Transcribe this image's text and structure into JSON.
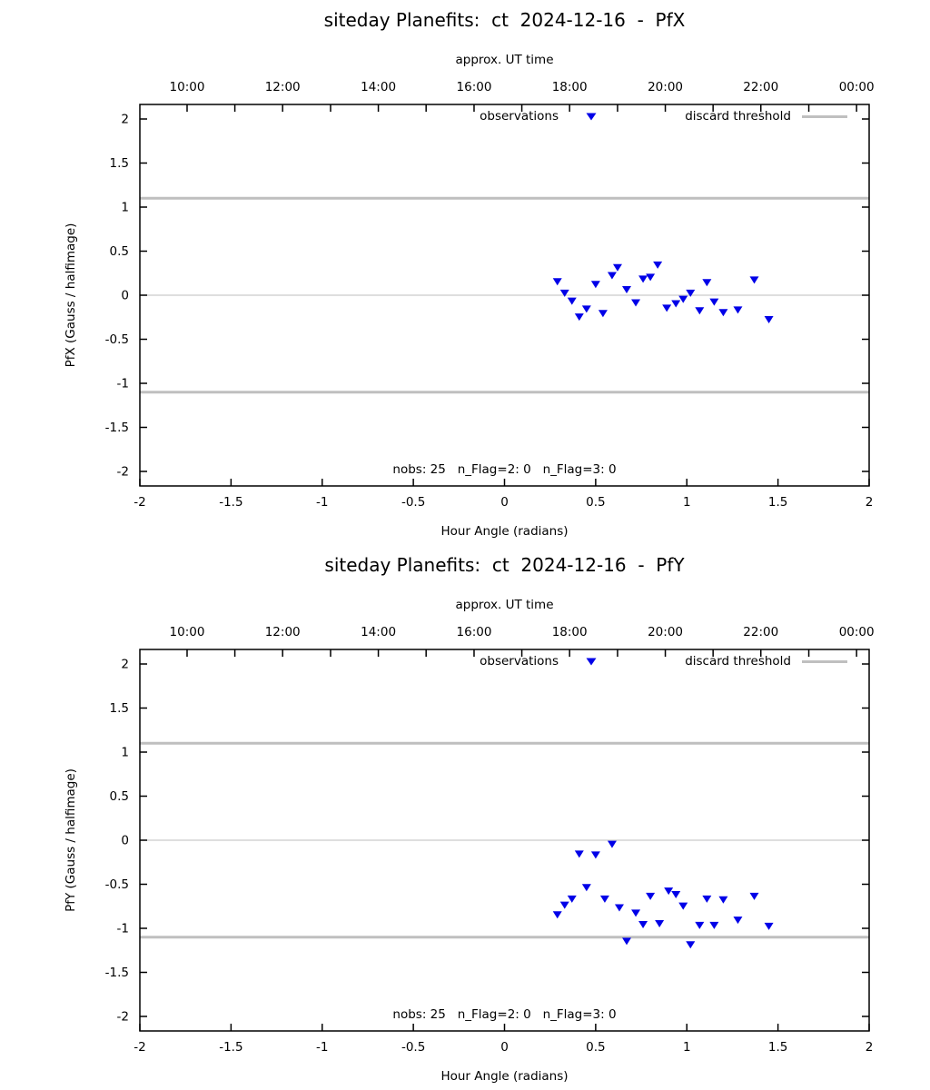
{
  "colors": {
    "marker_blue": "#0000e8",
    "threshold_gray": "#bfbfbf",
    "zero_line_gray": "#c9c9c9",
    "axis_black": "#000000",
    "background": "#ffffff"
  },
  "chart_data": [
    {
      "type": "scatter",
      "title": "siteday Planefits:  ct  2024-12-16  -  PfX",
      "top_axis": {
        "label": "approx. UT time",
        "tick_labels": [
          "10:00",
          "12:00",
          "14:00",
          "16:00",
          "18:00",
          "20:00",
          "22:00",
          "00:00"
        ],
        "tick_positions": [
          -1.741,
          -1.217,
          -0.692,
          -0.167,
          0.357,
          0.882,
          1.406,
          1.931
        ],
        "minor_tick_positions": [
          -1.479,
          -0.954,
          -0.43,
          0.095,
          0.62,
          1.144,
          1.669
        ]
      },
      "xlabel": "Hour Angle (radians)",
      "ylabel": "PfX (Gauss / halfimage)",
      "xlim": [
        -2,
        2
      ],
      "ylim": [
        -2.165,
        2.165
      ],
      "x_tick_values": [
        -2,
        -1.5,
        -1,
        -0.5,
        0,
        0.5,
        1,
        1.5,
        2
      ],
      "x_tick_labels": [
        "-2",
        "-1.5",
        "-1",
        "-0.5",
        "0",
        "0.5",
        "1",
        "1.5",
        "2"
      ],
      "y_tick_values": [
        2,
        1.5,
        1,
        0.5,
        0,
        -0.5,
        -1,
        -1.5,
        -2
      ],
      "y_tick_labels": [
        "2",
        "1.5",
        "1",
        "0.5",
        "0",
        "-0.5",
        "-1",
        "-1.5",
        "-2"
      ],
      "legend": {
        "observations_label": "observations",
        "threshold_label": "discard threshold"
      },
      "stats_line": "nobs: 25   n_Flag=2: 0   n_Flag=3: 0",
      "discard_threshold_values": [
        1.1,
        -1.1
      ],
      "zero_line_value": 0,
      "grid": false,
      "points": [
        [
          0.29,
          0.16
        ],
        [
          0.33,
          0.03
        ],
        [
          0.37,
          -0.06
        ],
        [
          0.41,
          -0.24
        ],
        [
          0.45,
          -0.15
        ],
        [
          0.5,
          0.13
        ],
        [
          0.54,
          -0.2
        ],
        [
          0.59,
          0.23
        ],
        [
          0.62,
          0.32
        ],
        [
          0.67,
          0.07
        ],
        [
          0.72,
          -0.08
        ],
        [
          0.76,
          0.19
        ],
        [
          0.8,
          0.21
        ],
        [
          0.84,
          0.35
        ],
        [
          0.89,
          -0.14
        ],
        [
          0.94,
          -0.09
        ],
        [
          0.98,
          -0.04
        ],
        [
          1.02,
          0.03
        ],
        [
          1.07,
          -0.17
        ],
        [
          1.11,
          0.15
        ],
        [
          1.15,
          -0.07
        ],
        [
          1.2,
          -0.19
        ],
        [
          1.28,
          -0.16
        ],
        [
          1.37,
          0.18
        ],
        [
          1.45,
          -0.27
        ]
      ]
    },
    {
      "type": "scatter",
      "title": "siteday Planefits:  ct  2024-12-16  -  PfY",
      "top_axis": {
        "label": "approx. UT time",
        "tick_labels": [
          "10:00",
          "12:00",
          "14:00",
          "16:00",
          "18:00",
          "20:00",
          "22:00",
          "00:00"
        ],
        "tick_positions": [
          -1.741,
          -1.217,
          -0.692,
          -0.167,
          0.357,
          0.882,
          1.406,
          1.931
        ],
        "minor_tick_positions": [
          -1.479,
          -0.954,
          -0.43,
          0.095,
          0.62,
          1.144,
          1.669
        ]
      },
      "xlabel": "Hour Angle (radians)",
      "ylabel": "PfY (Gauss / halfimage)",
      "xlim": [
        -2,
        2
      ],
      "ylim": [
        -2.165,
        2.165
      ],
      "x_tick_values": [
        -2,
        -1.5,
        -1,
        -0.5,
        0,
        0.5,
        1,
        1.5,
        2
      ],
      "x_tick_labels": [
        "-2",
        "-1.5",
        "-1",
        "-0.5",
        "0",
        "0.5",
        "1",
        "1.5",
        "2"
      ],
      "y_tick_values": [
        2,
        1.5,
        1,
        0.5,
        0,
        -0.5,
        -1,
        -1.5,
        -2
      ],
      "y_tick_labels": [
        "2",
        "1.5",
        "1",
        "0.5",
        "0",
        "-0.5",
        "-1",
        "-1.5",
        "-2"
      ],
      "legend": {
        "observations_label": "observations",
        "threshold_label": "discard threshold"
      },
      "stats_line": "nobs: 25   n_Flag=2: 0   n_Flag=3: 0",
      "discard_threshold_values": [
        1.1,
        -1.1
      ],
      "zero_line_value": 0,
      "grid": false,
      "points": [
        [
          0.29,
          -0.84
        ],
        [
          0.33,
          -0.73
        ],
        [
          0.37,
          -0.66
        ],
        [
          0.41,
          -0.15
        ],
        [
          0.45,
          -0.53
        ],
        [
          0.5,
          -0.16
        ],
        [
          0.55,
          -0.66
        ],
        [
          0.59,
          -0.04
        ],
        [
          0.63,
          -0.76
        ],
        [
          0.67,
          -1.14
        ],
        [
          0.72,
          -0.82
        ],
        [
          0.76,
          -0.95
        ],
        [
          0.8,
          -0.63
        ],
        [
          0.85,
          -0.94
        ],
        [
          0.9,
          -0.57
        ],
        [
          0.94,
          -0.61
        ],
        [
          0.98,
          -0.74
        ],
        [
          1.02,
          -1.18
        ],
        [
          1.07,
          -0.96
        ],
        [
          1.11,
          -0.66
        ],
        [
          1.15,
          -0.96
        ],
        [
          1.2,
          -0.67
        ],
        [
          1.28,
          -0.9
        ],
        [
          1.37,
          -0.63
        ],
        [
          1.45,
          -0.97
        ]
      ]
    }
  ]
}
